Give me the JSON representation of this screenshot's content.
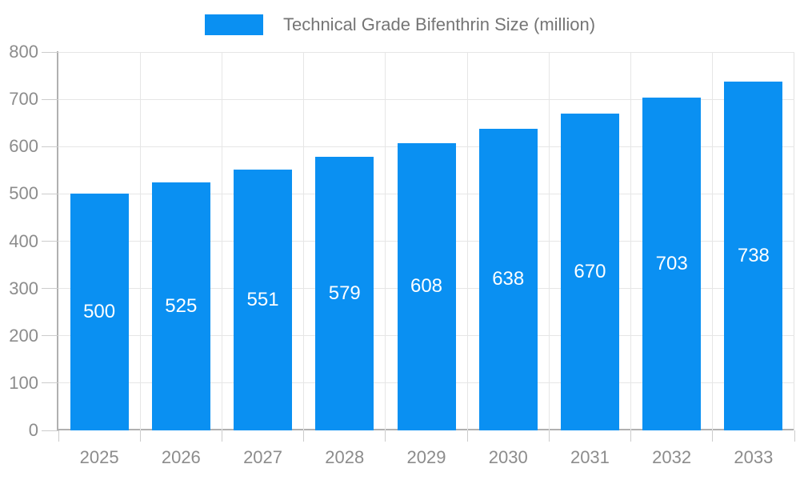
{
  "chart_data": {
    "type": "bar",
    "title": "Technical Grade Bifenthrin Size (million)",
    "categories": [
      "2025",
      "2026",
      "2027",
      "2028",
      "2029",
      "2030",
      "2031",
      "2032",
      "2033"
    ],
    "values": [
      500,
      525,
      551,
      579,
      608,
      638,
      670,
      703,
      738
    ],
    "bar_value_labels": [
      "500",
      "525",
      "551",
      "579",
      "608",
      "638",
      "670",
      "703",
      "738"
    ],
    "yticks": [
      0,
      100,
      200,
      300,
      400,
      500,
      600,
      700,
      800
    ],
    "ylim": [
      0,
      800
    ],
    "xlabel": "",
    "ylabel": "",
    "grid": true,
    "legend_position": "top-center",
    "colors": {
      "bar": "#0a90f2",
      "bar_label": "#ffffff",
      "axis_label": "#8c8c8c",
      "legend_text": "#757575",
      "grid": "#e6e6e6",
      "axis_line": "#b0b0b0",
      "tick": "#cccccc",
      "background": "#ffffff"
    }
  }
}
